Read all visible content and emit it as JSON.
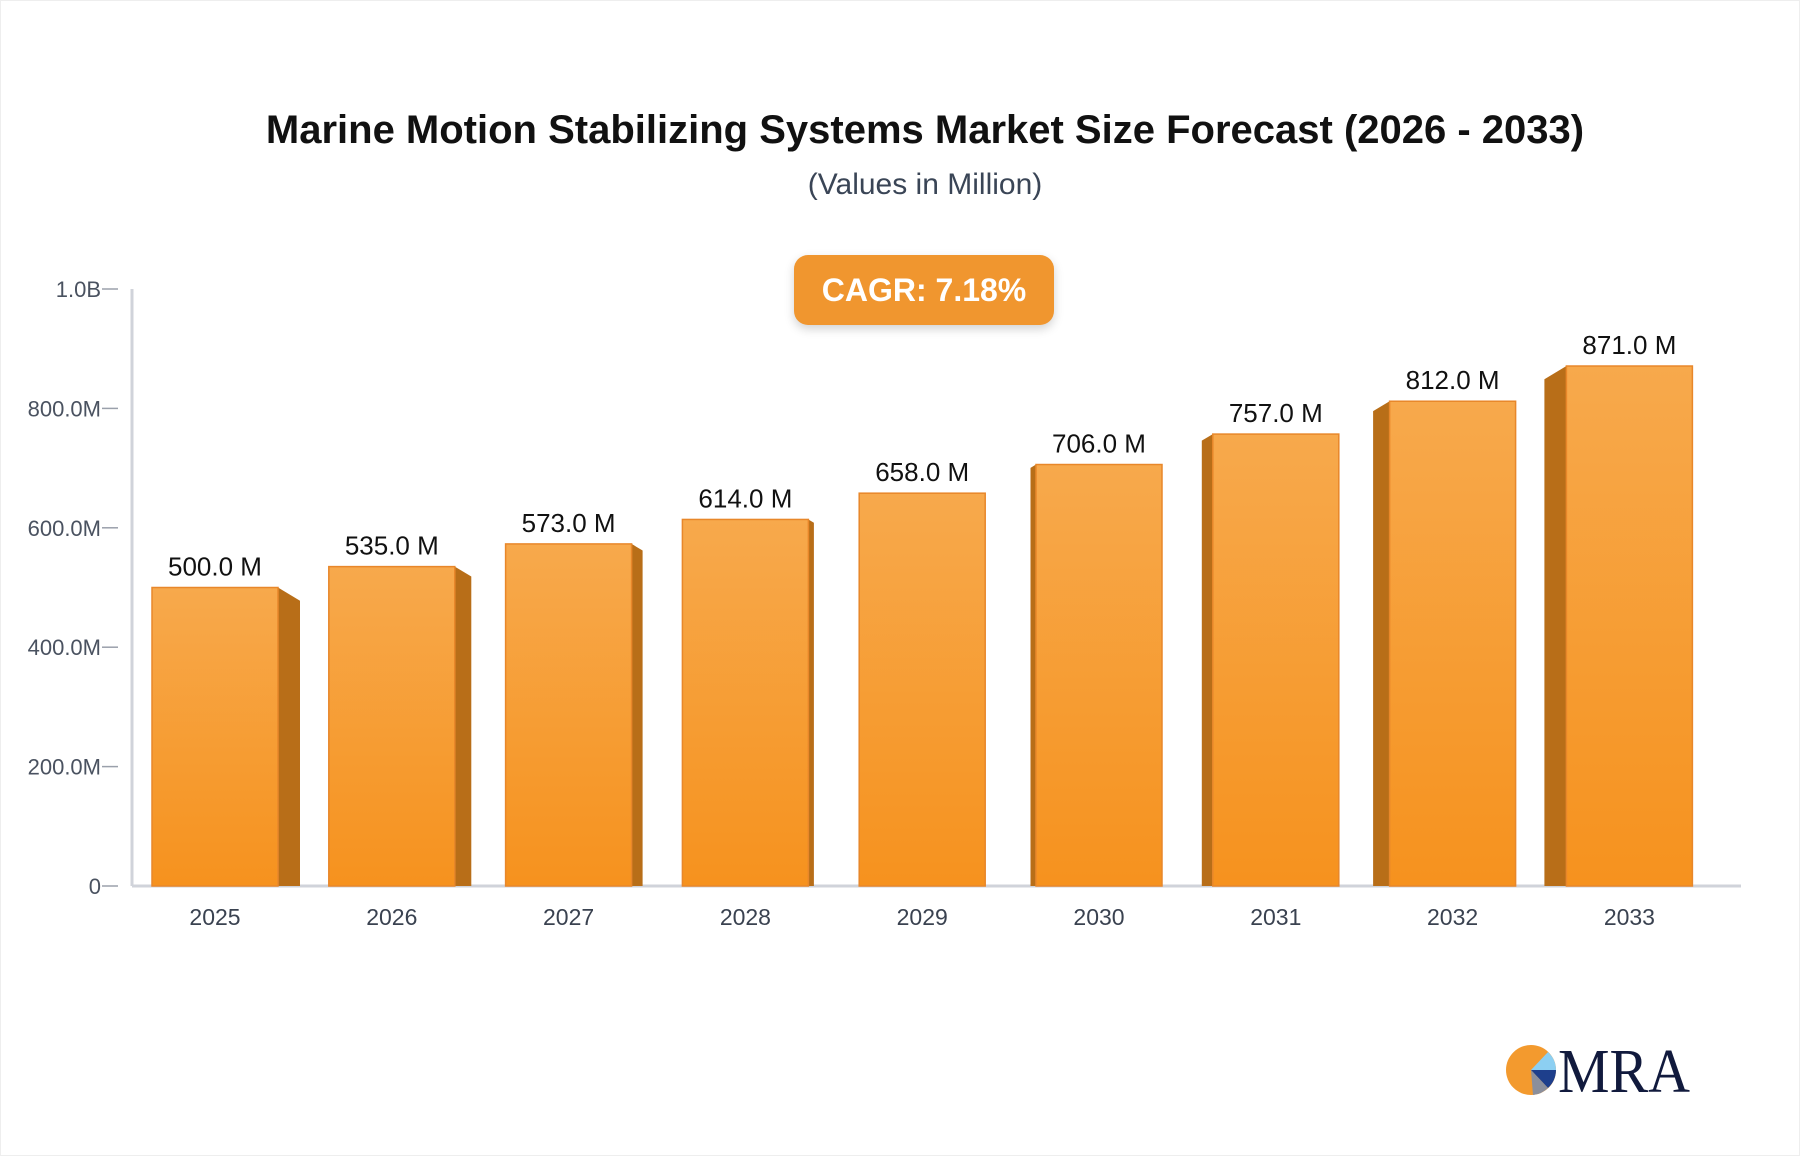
{
  "chart_data": {
    "type": "bar",
    "title": "Marine Motion Stabilizing Systems Market Size Forecast (2026 - 2033)",
    "subtitle": "(Values in Million)",
    "annotation": "CAGR: 7.18%",
    "categories": [
      "2025",
      "2026",
      "2027",
      "2028",
      "2029",
      "2030",
      "2031",
      "2032",
      "2033"
    ],
    "values": [
      500.0,
      535.0,
      573.0,
      614.0,
      658.0,
      706.0,
      757.0,
      812.0,
      871.0
    ],
    "data_labels": [
      "500.0 M",
      "535.0 M",
      "573.0 M",
      "614.0 M",
      "658.0 M",
      "706.0 M",
      "757.0 M",
      "812.0 M",
      "871.0 M"
    ],
    "ylim": [
      0,
      1000
    ],
    "yticks": [
      0,
      200,
      400,
      600,
      800,
      1000
    ],
    "ytick_labels": [
      "0",
      "200.0M",
      "400.0M",
      "600.0M",
      "800.0M",
      "1.0B"
    ],
    "xlabel": "",
    "ylabel": "",
    "grid": false,
    "colors": {
      "bar_front_top": "#f7a94c",
      "bar_front_bottom": "#f6921e",
      "bar_side": "#b86e18",
      "bar_edge": "#e8872a",
      "axis": "#d0d3da"
    }
  },
  "logo": {
    "text": "MRA"
  }
}
